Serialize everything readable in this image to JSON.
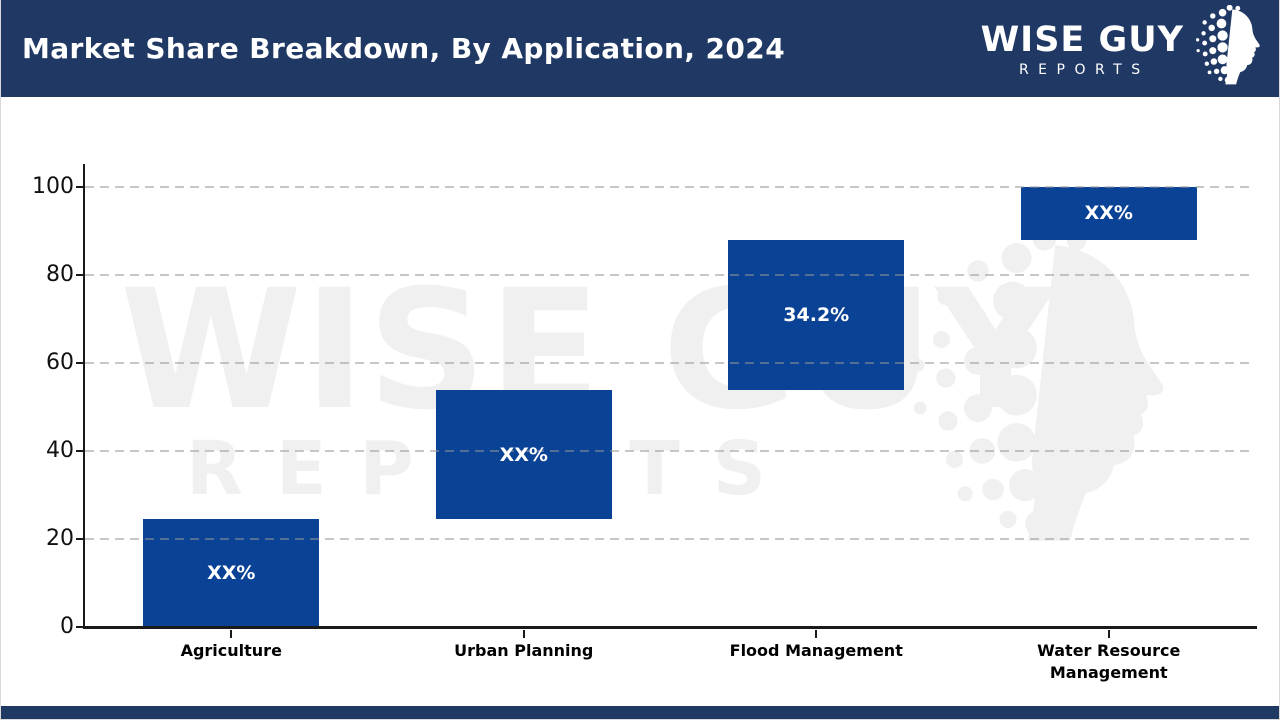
{
  "header": {
    "title": "Market Share Breakdown, By Application, 2024",
    "brand": {
      "name": "WISE GUY",
      "subtitle": "REPORTS"
    }
  },
  "watermark": {
    "name": "WISE GUY",
    "subtitle": "REPORTS"
  },
  "colors": {
    "header_bg": "#1f3864",
    "title_text": "#ffffff",
    "bar": "#0a4296",
    "bar_label": "#ffffff",
    "axis": "#1a1a1a",
    "tick_text": "#111111",
    "grid": "#96969688",
    "watermark": "#f0f0f0"
  },
  "chart_data": {
    "type": "bar",
    "variant": "waterfall",
    "title": "Market Share Breakdown, By Application, 2024",
    "xlabel": "",
    "ylabel": "",
    "legend": "none",
    "grid": "horizontal dashed",
    "ylim": [
      0,
      105
    ],
    "y_ticks": [
      0,
      20,
      40,
      60,
      80,
      100
    ],
    "categories": [
      "Agriculture",
      "Urban Planning",
      "Flood Management",
      "Water Resource Management"
    ],
    "segments": [
      {
        "category": "Agriculture",
        "start": 0,
        "end": 24.5,
        "value": 24.5,
        "value_label": "XX%"
      },
      {
        "category": "Urban Planning",
        "start": 24.5,
        "end": 53.8,
        "value": 29.3,
        "value_label": "XX%"
      },
      {
        "category": "Flood Management",
        "start": 53.8,
        "end": 88.0,
        "value": 34.2,
        "value_label": "34.2%"
      },
      {
        "category": "Water Resource Management",
        "start": 88.0,
        "end": 100.0,
        "value": 12.0,
        "value_label": "XX%"
      }
    ]
  }
}
